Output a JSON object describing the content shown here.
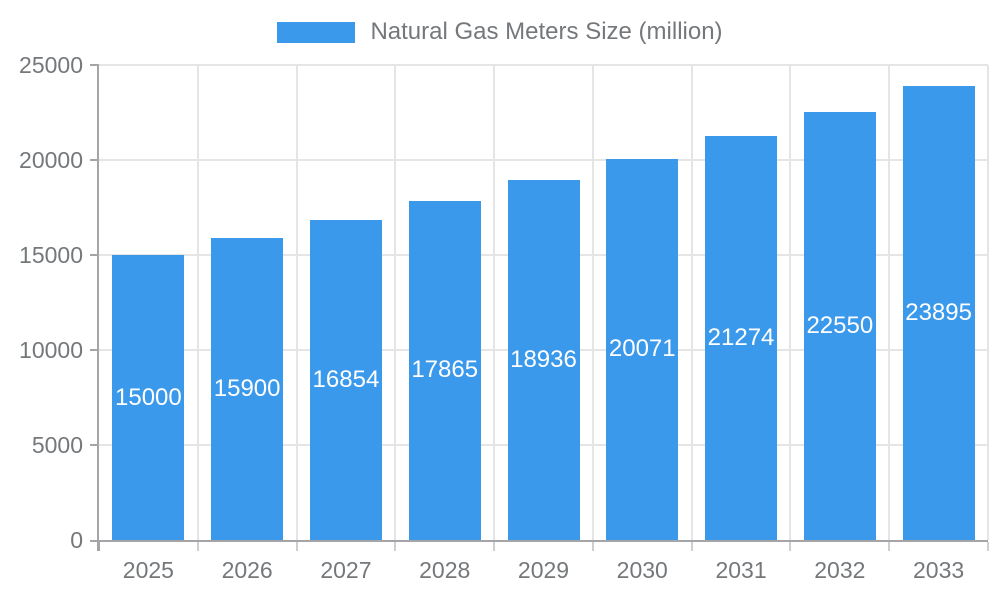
{
  "legend": {
    "label": "Natural Gas Meters Size (million)"
  },
  "chart_data": {
    "type": "bar",
    "title": "Natural Gas Meters Size (million)",
    "series_name": "Natural Gas Meters Size (million)",
    "categories": [
      "2025",
      "2026",
      "2027",
      "2028",
      "2029",
      "2030",
      "2031",
      "2032",
      "2033"
    ],
    "values": [
      15000,
      15900,
      16854,
      17865,
      18936,
      20071,
      21274,
      22550,
      23895
    ],
    "bar_labels": [
      "15000",
      "15900",
      "16854",
      "17865",
      "18936",
      "20071",
      "21274",
      "22550",
      "23895"
    ],
    "xlabel": "",
    "ylabel": "",
    "ylim": [
      0,
      25000
    ],
    "y_ticks": [
      0,
      5000,
      10000,
      15000,
      20000,
      25000
    ],
    "grid": true,
    "legend_position": "top",
    "bar_labels_visible": true,
    "bar_label_position": "center"
  },
  "colors": {
    "bar": "#3B99EC",
    "bar_label": "#FFFFFF",
    "tick_label": "#75787B",
    "legend_text": "#75787B",
    "axis_line": "#A5A5A9",
    "gridline": "#E5E5E5",
    "tick_mark": "#CFCFCF",
    "background": "#FFFFFF"
  }
}
